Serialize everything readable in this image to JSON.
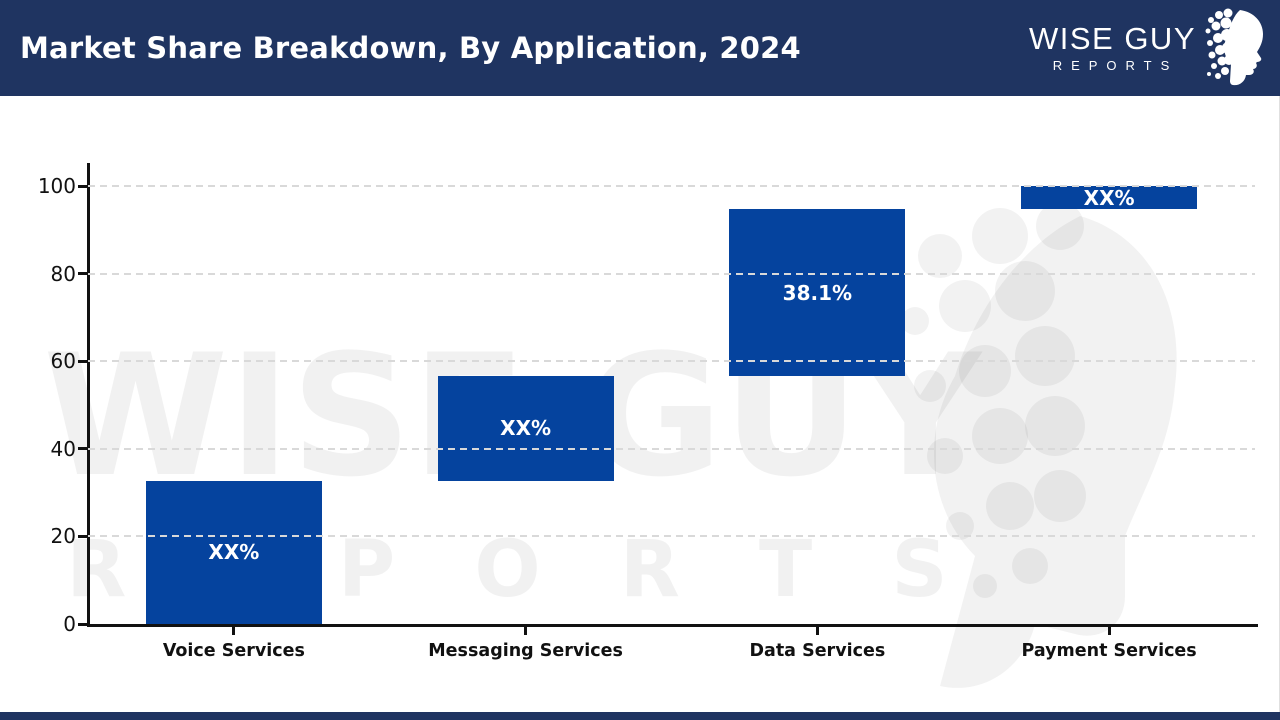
{
  "header": {
    "title": "Market Share Breakdown, By Application, 2024",
    "logo": {
      "line1": "WISE GUY",
      "line2": "REPORTS"
    },
    "bg_color": "#1f3461"
  },
  "watermark": {
    "line1": "WISE GUY",
    "line2": "R E P O R T S"
  },
  "chart_data": {
    "type": "bar",
    "subtype": "floating-waterfall",
    "title": "Market Share Breakdown, By Application, 2024",
    "categories": [
      "Voice Services",
      "Messaging Services",
      "Data Services",
      "Payment Services"
    ],
    "bars": [
      {
        "category": "Voice Services",
        "start": 0,
        "end": 32.7,
        "value": 32.7,
        "label": "XX%"
      },
      {
        "category": "Messaging Services",
        "start": 32.7,
        "end": 56.6,
        "value": 23.9,
        "label": "XX%"
      },
      {
        "category": "Data Services",
        "start": 56.6,
        "end": 94.7,
        "value": 38.1,
        "label": "38.1%"
      },
      {
        "category": "Payment Services",
        "start": 94.7,
        "end": 100,
        "value": 5.3,
        "label": "XX%"
      }
    ],
    "xlabel": "",
    "ylabel": "",
    "ylim": [
      0,
      100
    ],
    "yticks": [
      "0",
      "20",
      "40",
      "60",
      "80",
      "100"
    ],
    "grid": {
      "axis": "y",
      "style": "dashed",
      "color": "#d9d9d9",
      "on_top": true
    },
    "bar_color": "#05439e",
    "bar_label_color": "#ffffff",
    "axis_color": "#111111",
    "legend": null
  }
}
